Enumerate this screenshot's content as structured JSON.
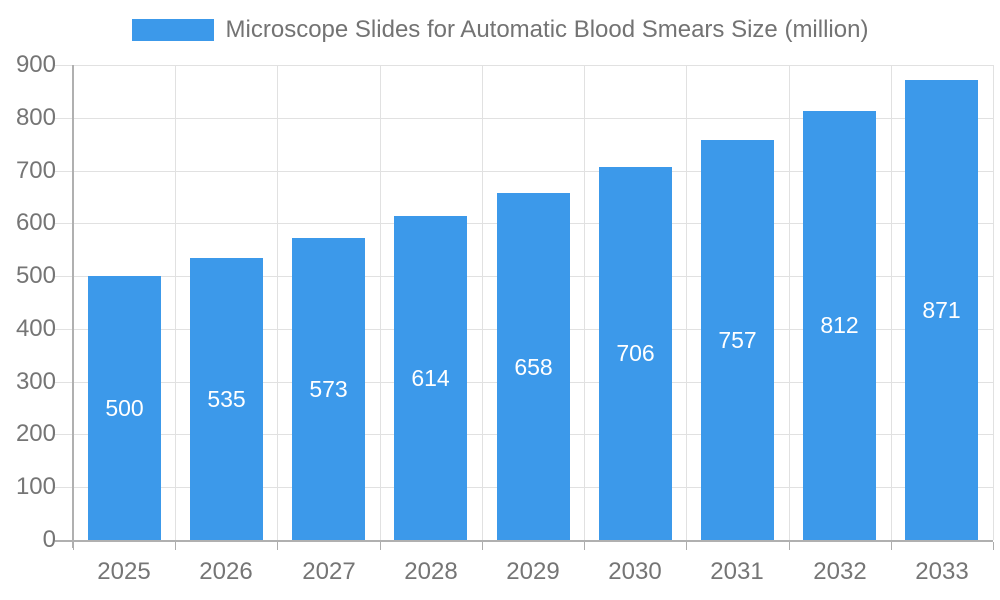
{
  "chart_data": {
    "type": "bar",
    "title": "Microscope Slides for Automatic Blood Smears Size (million)",
    "legend": [
      "Microscope Slides for Automatic Blood Smears Size (million)"
    ],
    "legend_position": "top-center",
    "categories": [
      "2025",
      "2026",
      "2027",
      "2028",
      "2029",
      "2030",
      "2031",
      "2032",
      "2033"
    ],
    "values": [
      500,
      535,
      573,
      614,
      658,
      706,
      757,
      812,
      871
    ],
    "bar_labels_shown": true,
    "xlabel": "",
    "ylabel": "",
    "ylim": [
      0,
      900
    ],
    "yticks": [
      0,
      100,
      200,
      300,
      400,
      500,
      600,
      700,
      800,
      900
    ],
    "grid": "horizontal and vertical gridlines",
    "colors": {
      "bar": "#3C99EA",
      "bar_label_text": "#FFFFFF",
      "grid_line": "#E1E1E1",
      "axis_line": "#B0B0B0",
      "tick_line": "#ADADAD",
      "axis_text": "#757575",
      "legend_text": "#737373",
      "background": "#FFFFFF"
    }
  }
}
